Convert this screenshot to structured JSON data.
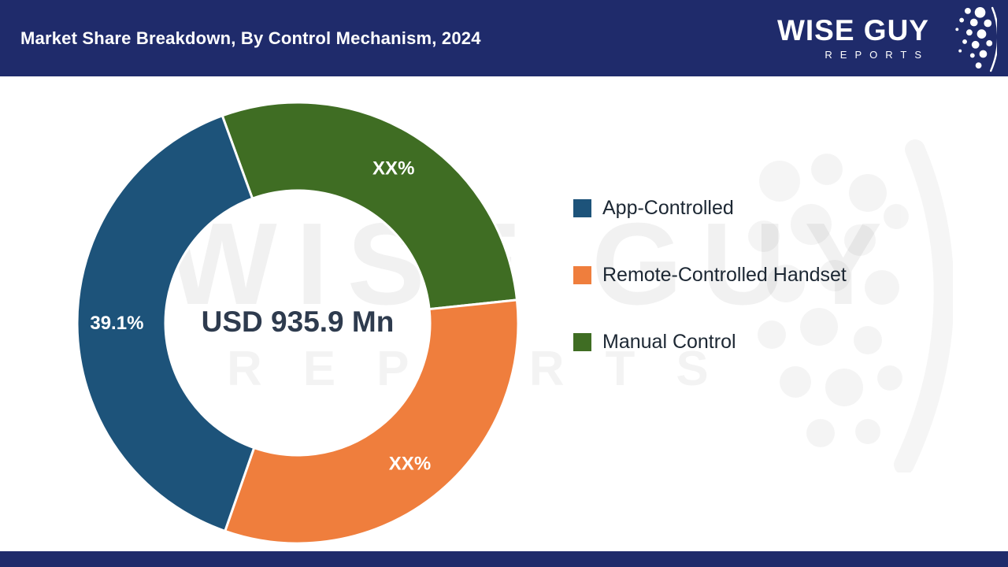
{
  "header": {
    "title": "Market Share Breakdown, By Control Mechanism, 2024",
    "logo": {
      "line1": "WISE GUY",
      "line2": "REPORTS"
    }
  },
  "watermark": {
    "line1": "WISE GUY",
    "line2": "REPORTS"
  },
  "colors": {
    "brand_navy": "#1f2b6b",
    "app_controlled_blue": "#1d537a",
    "remote_handset_orange": "#ef7e3d",
    "manual_control_green": "#3f6d23",
    "segment_label_white": "#ffffff",
    "center_label_dark": "#2e3b4e"
  },
  "chart_data": {
    "type": "pie",
    "subtype": "donut",
    "title": "Market Share Breakdown, By Control Mechanism, 2024",
    "center_label": "USD 935.9 Mn",
    "start_angle_deg": 340,
    "inner_radius_ratio": 0.6,
    "label_radius_ratio": 0.82,
    "legend_position": "right",
    "segments": [
      {
        "label": "Manual Control",
        "display_label": "XX%",
        "value": 28.9,
        "color": "#3f6d23"
      },
      {
        "label": "Remote-Controlled Handset",
        "display_label": "XX%",
        "value": 32.0,
        "color": "#ef7e3d"
      },
      {
        "label": "App-Controlled",
        "display_label": "39.1%",
        "value": 39.1,
        "color": "#1d537a"
      }
    ],
    "legend": [
      {
        "label": "App-Controlled",
        "color": "#1d537a"
      },
      {
        "label": "Remote-Controlled Handset",
        "color": "#ef7e3d"
      },
      {
        "label": "Manual Control",
        "color": "#3f6d23"
      }
    ]
  }
}
